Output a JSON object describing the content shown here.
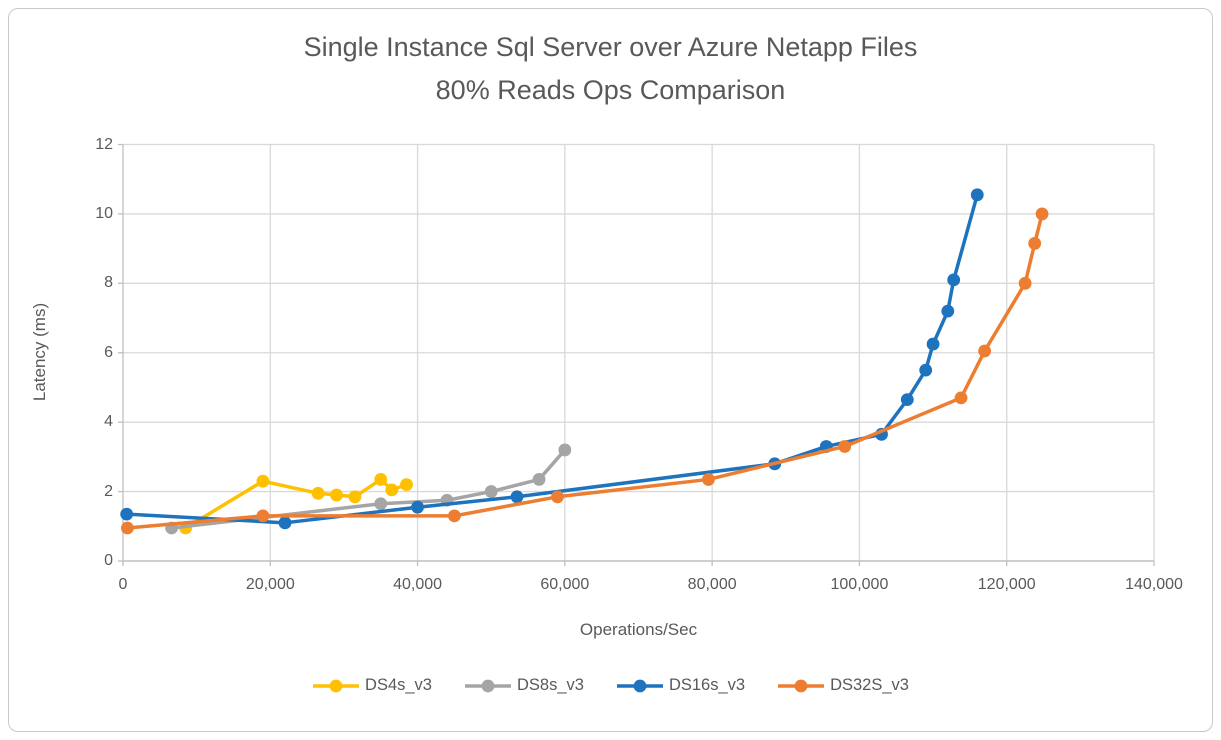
{
  "frame": {
    "background": "#FFFFFF",
    "border_color": "#C9C9C9"
  },
  "chart": {
    "title_line1": "Single Instance Sql Server over Azure Netapp Files",
    "title_line2": "80% Reads Ops Comparison",
    "x_axis_label": "Operations/Sec",
    "y_axis_label": "Latency (ms)"
  },
  "chart_data": {
    "type": "line",
    "title": "Single Instance Sql Server over Azure Netapp Files 80% Reads Ops Comparison",
    "xlabel": "Operations/Sec",
    "ylabel": "Latency (ms)",
    "xlim": [
      0,
      140000
    ],
    "ylim": [
      0,
      12
    ],
    "x_ticks": [
      0,
      20000,
      40000,
      60000,
      80000,
      100000,
      120000,
      140000
    ],
    "x_tick_labels": [
      "0",
      "20,000",
      "40,000",
      "60,000",
      "80,000",
      "100,000",
      "120,000",
      "140,000"
    ],
    "y_ticks": [
      0,
      2,
      4,
      6,
      8,
      10,
      12
    ],
    "y_tick_labels": [
      "0",
      "2",
      "4",
      "6",
      "8",
      "10",
      "12"
    ],
    "grid": true,
    "legend_position": "bottom",
    "colors": {
      "grid": "#D9D9D9",
      "axis": "#BFBFBF",
      "text": "#595959"
    },
    "series": [
      {
        "name": "DS4s_v3",
        "color": "#FFC000",
        "points": [
          [
            8500,
            0.95
          ],
          [
            19000,
            2.3
          ],
          [
            26500,
            1.95
          ],
          [
            29000,
            1.9
          ],
          [
            31500,
            1.85
          ],
          [
            35000,
            2.35
          ],
          [
            36500,
            2.05
          ],
          [
            38500,
            2.2
          ]
        ]
      },
      {
        "name": "DS8s_v3",
        "color": "#A5A5A5",
        "points": [
          [
            6600,
            0.95
          ],
          [
            35000,
            1.65
          ],
          [
            44000,
            1.75
          ],
          [
            50000,
            2.0
          ],
          [
            56500,
            2.35
          ],
          [
            60000,
            3.2
          ]
        ]
      },
      {
        "name": "DS16s_v3",
        "color": "#1E73BE",
        "points": [
          [
            500,
            1.35
          ],
          [
            22000,
            1.1
          ],
          [
            40000,
            1.55
          ],
          [
            53500,
            1.85
          ],
          [
            88500,
            2.8
          ],
          [
            95500,
            3.3
          ],
          [
            103000,
            3.65
          ],
          [
            106500,
            4.65
          ],
          [
            109000,
            5.5
          ],
          [
            110000,
            6.25
          ],
          [
            112000,
            7.2
          ],
          [
            112800,
            8.1
          ],
          [
            116000,
            10.55
          ]
        ]
      },
      {
        "name": "DS32S_v3",
        "color": "#ED7D31",
        "points": [
          [
            600,
            0.95
          ],
          [
            19000,
            1.3
          ],
          [
            45000,
            1.3
          ],
          [
            59000,
            1.85
          ],
          [
            79500,
            2.35
          ],
          [
            98000,
            3.3
          ],
          [
            113800,
            4.7
          ],
          [
            117000,
            6.05
          ],
          [
            122500,
            8.0
          ],
          [
            123800,
            9.15
          ],
          [
            124800,
            10.0
          ]
        ]
      }
    ]
  }
}
